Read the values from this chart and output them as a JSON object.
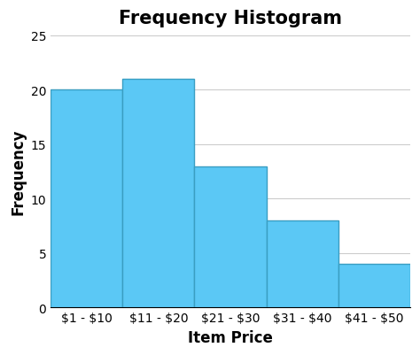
{
  "title": "Frequency Histogram",
  "xlabel": "Item Price",
  "ylabel": "Frequency",
  "categories": [
    "$1 - $10",
    "$11 - $20",
    "$21 - $30",
    "$31 - $40",
    "$41 - $50"
  ],
  "values": [
    20,
    21,
    13,
    8,
    4
  ],
  "bar_color": "#5BC8F5",
  "bar_edgecolor": "#3A9EC2",
  "ylim": [
    0,
    25
  ],
  "yticks": [
    0,
    5,
    10,
    15,
    20,
    25
  ],
  "title_fontsize": 15,
  "title_fontweight": "bold",
  "label_fontsize": 12,
  "label_fontweight": "bold",
  "tick_fontsize": 10,
  "background_color": "#ffffff",
  "grid_color": "#cccccc"
}
